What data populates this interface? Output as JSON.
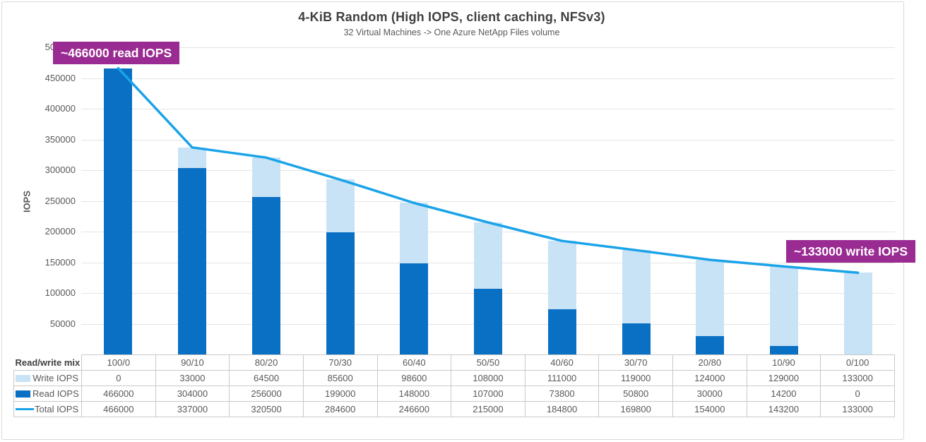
{
  "header": {
    "title": "4-KiB Random (High IOPS, client caching, NFSv3)",
    "subtitle": "32 Virtual Machines -> One Azure NetApp Files volume"
  },
  "y_axis": {
    "label": "IOPS"
  },
  "annotations": {
    "read": "~466000 read IOPS",
    "write": "~133000 write IOPS"
  },
  "table": {
    "corner_label": "Read/write mix"
  },
  "colors": {
    "read_bar": "#0a70c4",
    "write_bar": "#c9e3f6",
    "total_line": "#1aa3e8",
    "annotation_bg": "#9a2b92",
    "gridline": "#e4e4e4",
    "frame_border": "#d9d9d9",
    "table_border": "#c9c9c9",
    "text_gray": "#595959",
    "title_gray": "#404040"
  },
  "chart_data": {
    "type": "stacked-bar-with-line",
    "title": "4-KiB Random (High IOPS, client caching, NFSv3)",
    "subtitle": "32 Virtual Machines -> One Azure NetApp Files volume",
    "xlabel": "Read/write mix",
    "ylabel": "IOPS",
    "ylim": [
      0,
      500000
    ],
    "ytick_step": 50000,
    "yticks": [
      50000,
      100000,
      150000,
      200000,
      250000,
      300000,
      350000,
      400000,
      450000,
      500000
    ],
    "grid": true,
    "legend_position": "data-table-left",
    "categories": [
      "100/0",
      "90/10",
      "80/20",
      "70/30",
      "60/40",
      "50/50",
      "40/60",
      "30/70",
      "20/80",
      "10/90",
      "0/100"
    ],
    "series": [
      {
        "name": "Write IOPS",
        "type": "bar",
        "role": "bar-top",
        "swatch": "rect",
        "color": "#c9e3f6",
        "values": [
          0,
          33000,
          64500,
          85600,
          98600,
          108000,
          111000,
          119000,
          124000,
          129000,
          133000
        ]
      },
      {
        "name": "Read IOPS",
        "type": "bar",
        "role": "bar-bottom",
        "swatch": "rect",
        "color": "#0a70c4",
        "values": [
          466000,
          304000,
          256000,
          199000,
          148000,
          107000,
          73800,
          50800,
          30000,
          14200,
          0
        ]
      },
      {
        "name": "Total IOPS",
        "type": "line",
        "role": "line",
        "swatch": "line",
        "color": "#1aa3e8",
        "values": [
          466000,
          337000,
          320500,
          284600,
          246600,
          215000,
          184800,
          169800,
          154000,
          143200,
          133000
        ]
      }
    ],
    "annotations": [
      {
        "text": "~466000 read IOPS",
        "target": "first bar read value",
        "bg": "#9a2b92"
      },
      {
        "text": "~133000 write IOPS",
        "target": "last bar write value",
        "bg": "#9a2b92"
      }
    ]
  }
}
